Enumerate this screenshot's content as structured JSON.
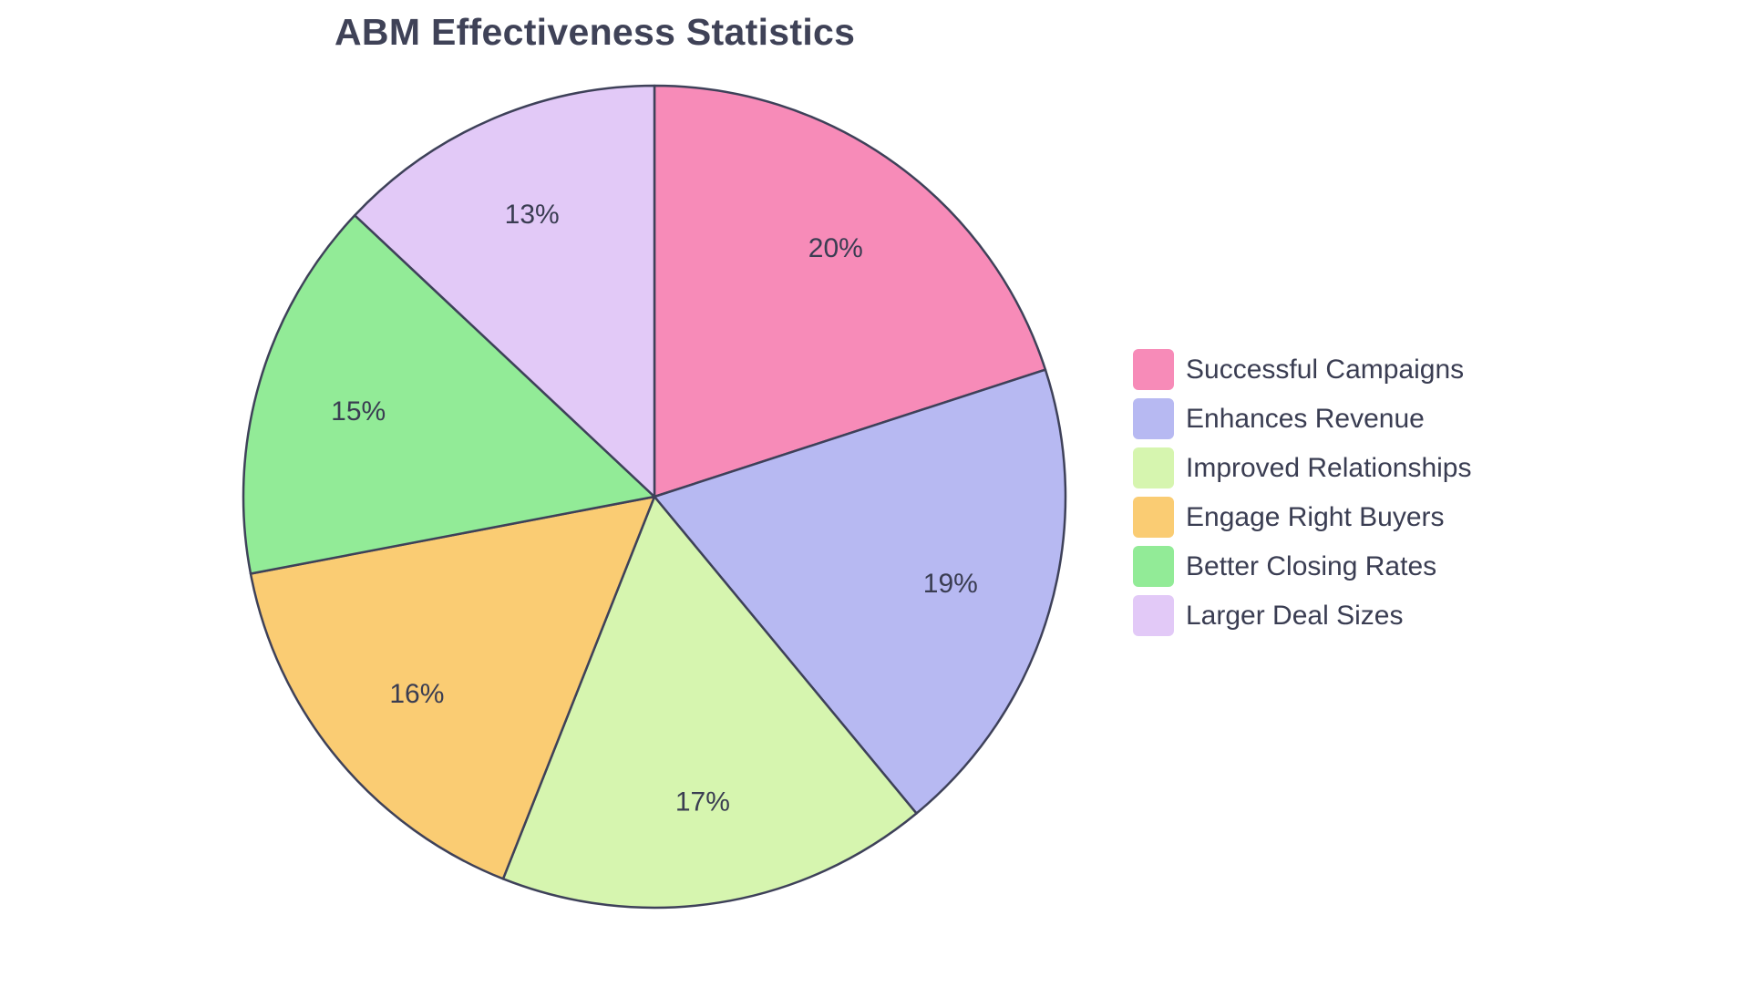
{
  "title": "ABM Effectiveness Statistics",
  "chart_data": {
    "type": "pie",
    "title": "ABM Effectiveness Statistics",
    "categories": [
      "Successful Campaigns",
      "Enhances Revenue",
      "Improved Relationships",
      "Engage Right Buyers",
      "Better Closing Rates",
      "Larger Deal Sizes"
    ],
    "values": [
      20,
      19,
      17,
      16,
      15,
      13
    ],
    "slice_labels": [
      "20%",
      "19%",
      "17%",
      "16%",
      "15%",
      "13%"
    ],
    "slice_colors": [
      "#F78BB8",
      "#B7B9F2",
      "#D6F5AF",
      "#FACC73",
      "#92EB97",
      "#E2C9F7"
    ],
    "stroke_color": "#3E4159",
    "label_color": "#3A3D52",
    "title_color": "#3F4257",
    "background": "#FFFFFF",
    "start_angle_deg": 0,
    "direction": "clockwise",
    "legend_position": "right",
    "grid": false
  }
}
